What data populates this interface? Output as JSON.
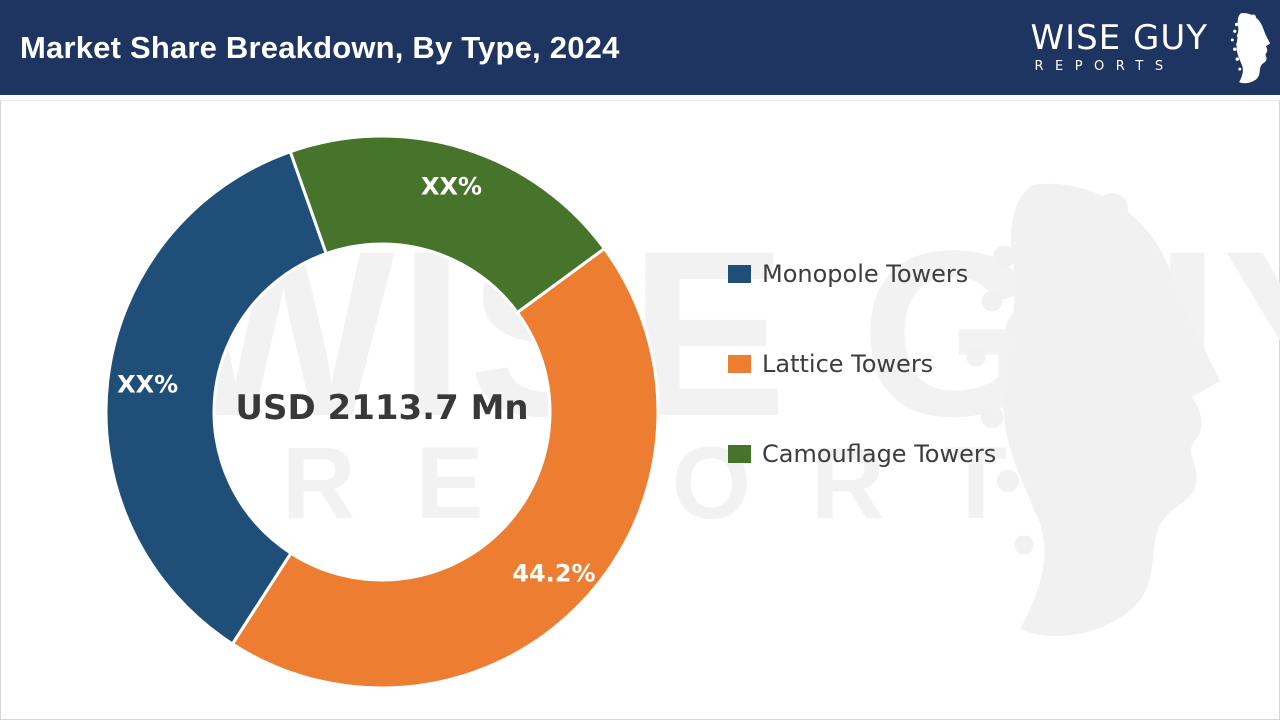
{
  "header": {
    "title": "Market Share Breakdown, By Type, 2024"
  },
  "brand": {
    "name": "WISE GUY",
    "sub": "REPORTS"
  },
  "watermark": {
    "line1": "WISE GUY",
    "line2": "REPORTS"
  },
  "colors": {
    "header_bg": "#1e3461",
    "monopole_blue": "#1f4e79",
    "lattice_orange": "#ed7d31",
    "camouflage_green": "#47742b",
    "center_text": "#383838",
    "watermark_gray": "#f2f2f2"
  },
  "chart_data": {
    "type": "pie",
    "subtype": "donut",
    "title": "Market Share Breakdown, By Type, 2024",
    "center_label": "USD 2113.7 Mn",
    "start_angle_deg": 109.4,
    "direction": "counterclockwise",
    "legend_position": "right",
    "series": [
      {
        "name": "Monopole Towers",
        "value": 35.5,
        "label": "XX%",
        "color": "#1f4e79"
      },
      {
        "name": "Lattice Towers",
        "value": 44.2,
        "label": "44.2%",
        "color": "#ed7d31"
      },
      {
        "name": "Camouflage Towers",
        "value": 20.3,
        "label": "XX%",
        "color": "#47742b"
      }
    ]
  }
}
